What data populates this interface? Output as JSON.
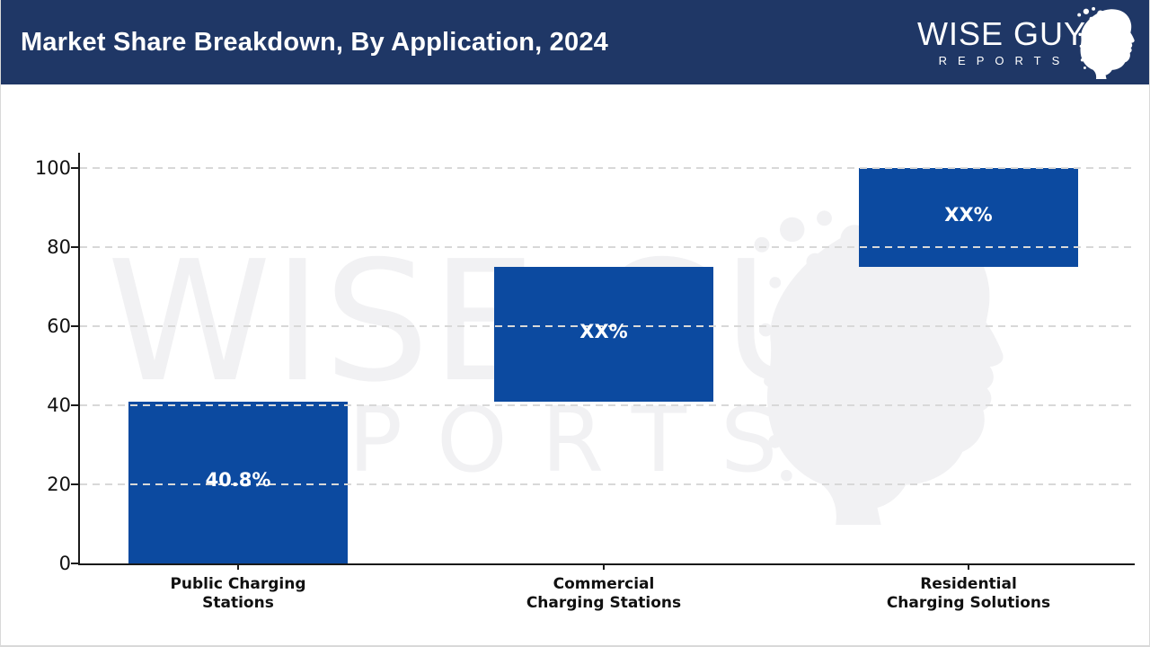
{
  "header": {
    "title": "Market Share Breakdown, By Application, 2024",
    "logo": {
      "name": "WISE GUY",
      "sub": "REPORTS"
    }
  },
  "watermark": {
    "name": "WISE GUY",
    "sub": "REPORTS"
  },
  "chart_data": {
    "type": "bar",
    "subtype": "floating-waterfall-segments",
    "title": "Market Share Breakdown, By Application, 2024",
    "categories": [
      {
        "lines": [
          "Public Charging",
          "Stations"
        ]
      },
      {
        "lines": [
          "Commercial",
          "Charging Stations"
        ]
      },
      {
        "lines": [
          "Residential",
          "Charging Solutions"
        ]
      }
    ],
    "segments": [
      {
        "start": 0,
        "end": 40.8,
        "label": "40.8%"
      },
      {
        "start": 41,
        "end": 75,
        "label": "XX%"
      },
      {
        "start": 75,
        "end": 100,
        "label": "XX%"
      }
    ],
    "xlabel": "",
    "ylabel": "",
    "ylim": [
      0,
      105
    ],
    "yticks": [
      0,
      20,
      40,
      60,
      80,
      100
    ],
    "grid": "horizontal-dashed",
    "legend": "none",
    "bar_color": "#0c4aa0",
    "value_label_color": "#ffffff"
  },
  "colors": {
    "header_bg": "#1f3766",
    "bar": "#0c4aa0",
    "gridline": "#d8d8d8",
    "axis": "#1a1a1a",
    "watermark": "#f1f1f3",
    "card_border": "#d9d9d9"
  }
}
